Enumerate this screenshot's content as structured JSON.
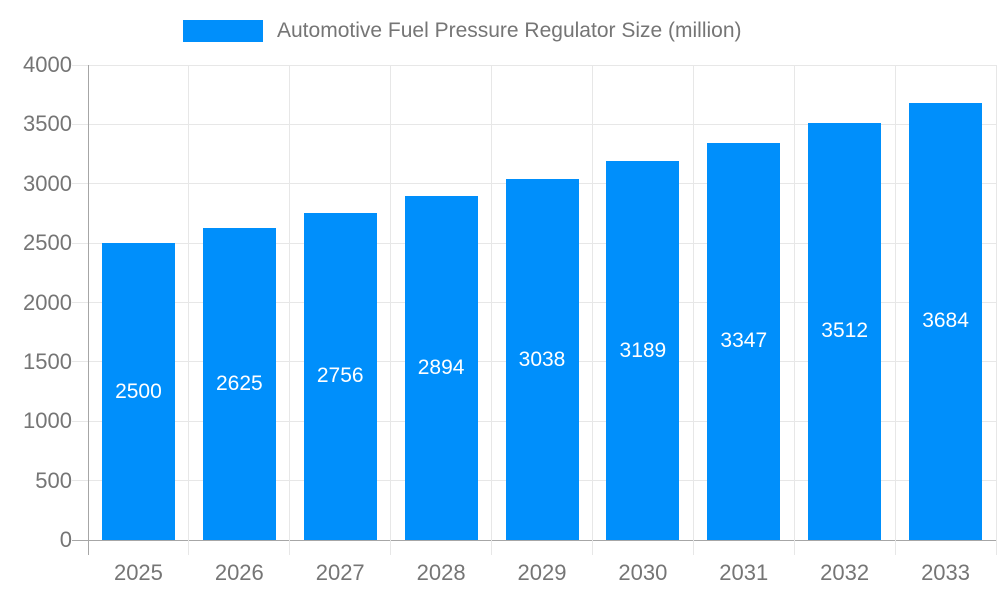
{
  "legend": {
    "label": "Automotive Fuel Pressure Regulator Size (million)"
  },
  "chart_data": {
    "type": "bar",
    "title": "Automotive Fuel Pressure Regulator Size (million)",
    "categories": [
      "2025",
      "2026",
      "2027",
      "2028",
      "2029",
      "2030",
      "2031",
      "2032",
      "2033"
    ],
    "values": [
      2500,
      2625,
      2756,
      2894,
      3038,
      3189,
      3347,
      3512,
      3684
    ],
    "series": [
      {
        "name": "Automotive Fuel Pressure Regulator Size (million)",
        "values": [
          2500,
          2625,
          2756,
          2894,
          3038,
          3189,
          3347,
          3512,
          3684
        ]
      }
    ],
    "xlabel": "",
    "ylabel": "",
    "ylim": [
      0,
      4000
    ],
    "ytick_step": 500,
    "ytick_labels": [
      "0",
      "500",
      "1000",
      "1500",
      "2000",
      "2500",
      "3000",
      "3500",
      "4000"
    ],
    "grid": true,
    "legend_position": "top",
    "bar_labels_shown": true,
    "colors": {
      "bar": "#008FFB",
      "bar_label_text": "#ffffff",
      "axis_text": "#757575",
      "gridline": "#e7e7e7",
      "axis_line": "#a6a6a6",
      "background": "#ffffff"
    }
  }
}
